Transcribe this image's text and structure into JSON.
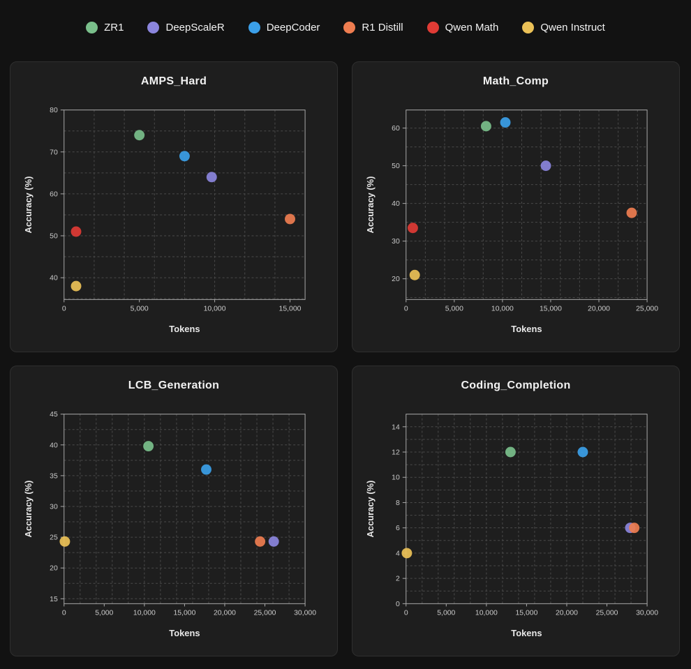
{
  "style": {
    "page_bg": "#121212",
    "card_bg": "#1e1e1e",
    "card_border": "#2f2f2f",
    "axis_color": "#a9a9a9",
    "grid_color": "#4a4a4a",
    "tick_text_color": "#c9c9c9",
    "axis_label_color": "#e8e8e8",
    "title_color": "#f2f2f2"
  },
  "legend": {
    "position": "top-center",
    "items": [
      {
        "label": "ZR1",
        "color": "#7abf8b",
        "swatch": "circle-icon"
      },
      {
        "label": "DeepScaleR",
        "color": "#8b85dd",
        "swatch": "circle-icon"
      },
      {
        "label": "DeepCoder",
        "color": "#3b9fe8",
        "swatch": "circle-icon"
      },
      {
        "label": "R1 Distill",
        "color": "#ee7d50",
        "swatch": "circle-icon"
      },
      {
        "label": "Qwen Math",
        "color": "#e03b35",
        "swatch": "circle-icon"
      },
      {
        "label": "Qwen Instruct",
        "color": "#ebc157",
        "swatch": "circle-icon"
      }
    ]
  },
  "chart_data": [
    {
      "type": "scatter",
      "title": "AMPS_Hard",
      "xlabel": "Tokens",
      "ylabel": "Accuracy (%)",
      "xlim": [
        0,
        16000
      ],
      "ylim": [
        34.8,
        80
      ],
      "xticks": [
        0,
        5000,
        10000,
        15000
      ],
      "yticks": [
        40,
        50,
        60,
        70,
        80
      ],
      "grid": {
        "on": true,
        "x_step": 2000,
        "y_step": 5,
        "style": "dashed"
      },
      "points": [
        {
          "series": "ZR1",
          "x": 5000,
          "y": 74
        },
        {
          "series": "DeepScaleR",
          "x": 9800,
          "y": 64
        },
        {
          "series": "DeepCoder",
          "x": 8000,
          "y": 69
        },
        {
          "series": "R1 Distill",
          "x": 15000,
          "y": 54
        },
        {
          "series": "Qwen Math",
          "x": 800,
          "y": 51
        },
        {
          "series": "Qwen Instruct",
          "x": 800,
          "y": 38
        }
      ]
    },
    {
      "type": "scatter",
      "title": "Math_Comp",
      "xlabel": "Tokens",
      "ylabel": "Accuracy (%)",
      "xlim": [
        0,
        25000
      ],
      "ylim": [
        14.5,
        64.8
      ],
      "xticks": [
        0,
        5000,
        10000,
        15000,
        20000,
        25000
      ],
      "yticks": [
        20,
        30,
        40,
        50,
        60
      ],
      "grid": {
        "on": true,
        "x_step": 2000,
        "y_step": 5,
        "style": "dashed"
      },
      "points": [
        {
          "series": "ZR1",
          "x": 8300,
          "y": 60.5
        },
        {
          "series": "DeepScaleR",
          "x": 14500,
          "y": 50
        },
        {
          "series": "DeepCoder",
          "x": 10300,
          "y": 61.5
        },
        {
          "series": "R1 Distill",
          "x": 23400,
          "y": 37.5
        },
        {
          "series": "Qwen Math",
          "x": 700,
          "y": 33.5
        },
        {
          "series": "Qwen Instruct",
          "x": 900,
          "y": 21
        }
      ]
    },
    {
      "type": "scatter",
      "title": "LCB_Generation",
      "xlabel": "Tokens",
      "ylabel": "Accuracy (%)",
      "xlim": [
        0,
        30000
      ],
      "ylim": [
        14.2,
        45
      ],
      "xticks": [
        0,
        5000,
        10000,
        15000,
        20000,
        25000,
        30000
      ],
      "yticks": [
        15,
        20,
        25,
        30,
        35,
        40,
        45
      ],
      "grid": {
        "on": true,
        "x_step": 2000,
        "y_step": 2.5,
        "style": "dashed"
      },
      "points": [
        {
          "series": "ZR1",
          "x": 10500,
          "y": 39.8
        },
        {
          "series": "DeepScaleR",
          "x": 26100,
          "y": 24.3
        },
        {
          "series": "DeepCoder",
          "x": 17700,
          "y": 36
        },
        {
          "series": "R1 Distill",
          "x": 24400,
          "y": 24.3
        },
        {
          "series": "Qwen Instruct",
          "x": 100,
          "y": 24.3
        }
      ]
    },
    {
      "type": "scatter",
      "title": "Coding_Completion",
      "xlabel": "Tokens",
      "ylabel": "Accuracy (%)",
      "xlim": [
        0,
        30000
      ],
      "ylim": [
        0,
        15
      ],
      "xticks": [
        0,
        5000,
        10000,
        15000,
        20000,
        25000,
        30000
      ],
      "yticks": [
        0,
        2,
        4,
        6,
        8,
        10,
        12,
        14
      ],
      "grid": {
        "on": true,
        "x_step": 2000,
        "y_step": 1,
        "style": "dashed"
      },
      "points": [
        {
          "series": "ZR1",
          "x": 13000,
          "y": 12
        },
        {
          "series": "DeepScaleR",
          "x": 27900,
          "y": 6
        },
        {
          "series": "DeepCoder",
          "x": 22000,
          "y": 12
        },
        {
          "series": "R1 Distill",
          "x": 28400,
          "y": 6
        },
        {
          "series": "Qwen Instruct",
          "x": 100,
          "y": 4
        }
      ]
    }
  ]
}
